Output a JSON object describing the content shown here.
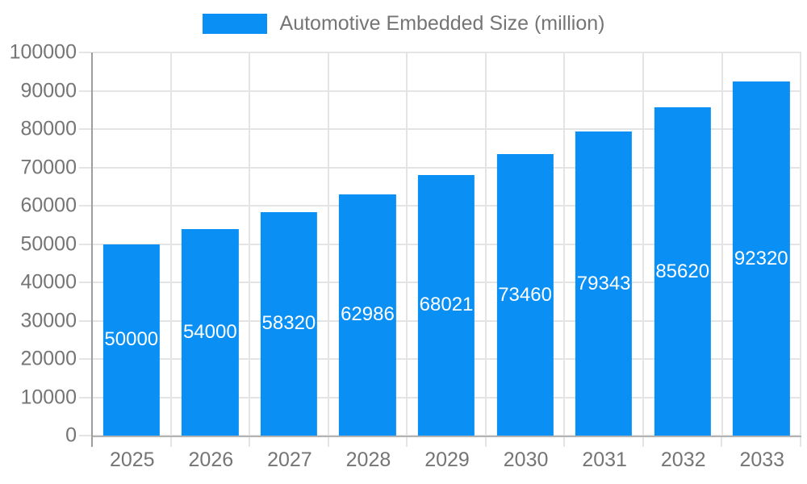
{
  "chart_data": {
    "type": "bar",
    "title": "Automotive Embedded Size (million)",
    "categories": [
      "2025",
      "2026",
      "2027",
      "2028",
      "2029",
      "2030",
      "2031",
      "2032",
      "2033"
    ],
    "values": [
      50000,
      54000,
      58320,
      62986,
      68021,
      73460,
      79343,
      85620,
      92320
    ],
    "xlabel": "",
    "ylabel": "",
    "ylim": [
      0,
      100000
    ],
    "y_ticks": [
      0,
      10000,
      20000,
      30000,
      40000,
      50000,
      60000,
      70000,
      80000,
      90000,
      100000
    ],
    "grid": true,
    "legend_position": "top",
    "value_labels": "centered-inside-bars",
    "colors": {
      "bar": "#0a90f5",
      "grid": "#e4e4e4",
      "axis": "#9e9e9e",
      "axis_baseline": "#b3b3b3",
      "text": "#757575",
      "value_text": "#ffffff",
      "background": "#ffffff"
    }
  }
}
